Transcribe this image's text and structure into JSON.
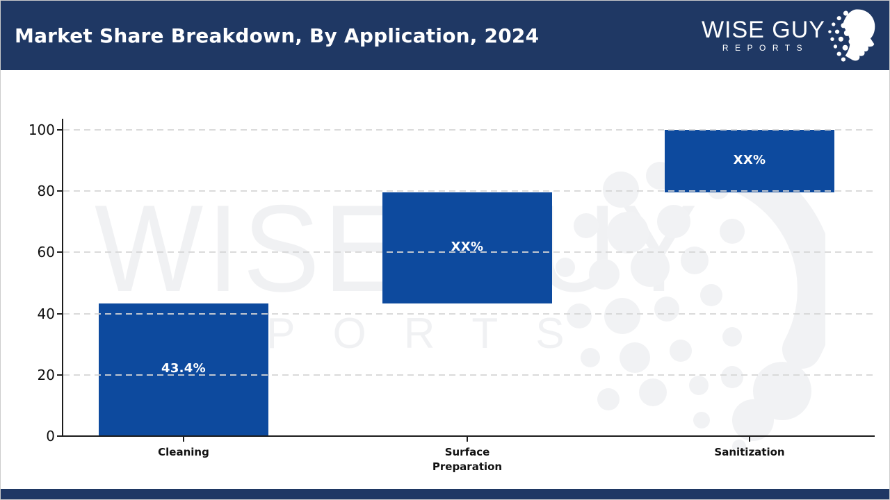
{
  "page": {
    "background": "#ffffff",
    "border_color": "#cccccc"
  },
  "header": {
    "bg_color": "#1f3864",
    "title": "Market Share Breakdown, By Application, 2024",
    "title_color": "#ffffff",
    "logo": {
      "line1": "WISE GUY",
      "line2": "REPORTS"
    }
  },
  "watermark": {
    "line1": "WISE GUY",
    "line2": "REPORTS"
  },
  "chart_data": {
    "type": "bar",
    "subtype": "waterfall",
    "title": "Market Share Breakdown, By Application, 2024",
    "categories": [
      "Cleaning",
      "Surface Preparation",
      "Sanitization"
    ],
    "categories_display": [
      "Cleaning",
      "Surface\nPreparation",
      "Sanitization"
    ],
    "segments": [
      {
        "category": "Cleaning",
        "start": 0,
        "end": 43.4,
        "label": "43.4%"
      },
      {
        "category": "Surface Preparation",
        "start": 43.4,
        "end": 79.5,
        "label": "XX%"
      },
      {
        "category": "Sanitization",
        "start": 79.5,
        "end": 100,
        "label": "XX%"
      }
    ],
    "ylim": [
      0,
      100
    ],
    "yticks": [
      0,
      20,
      40,
      60,
      80,
      100
    ],
    "bar_color": "#0d4a9e",
    "bar_label_color": "#ffffff",
    "grid": {
      "axis": "y",
      "style": "dashed",
      "color": "#d9d9d9",
      "drawn_above_bars": true
    },
    "legend": "none"
  },
  "footer": {
    "bg_color": "#1f3864"
  }
}
